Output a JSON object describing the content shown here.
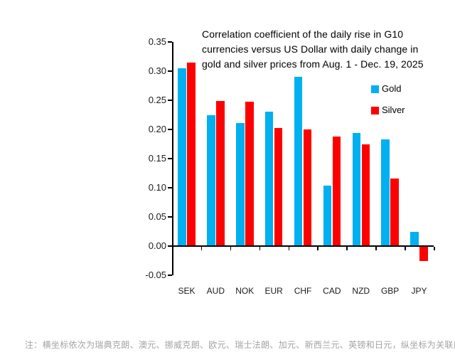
{
  "chart_data": {
    "type": "bar",
    "title": "Correlation coefficient of the daily rise in G10\ncurrencies versus US Dollar with daily change in\ngold and silver prices from Aug. 1 - Dec. 19, 2025",
    "categories": [
      "SEK",
      "AUD",
      "NOK",
      "EUR",
      "CHF",
      "CAD",
      "NZD",
      "GBP",
      "JPY"
    ],
    "series": [
      {
        "name": "Gold",
        "color": "#00B0F0",
        "values": [
          0.305,
          0.224,
          0.211,
          0.231,
          0.29,
          0.104,
          0.194,
          0.183,
          0.025
        ]
      },
      {
        "name": "Silver",
        "color": "#FF0000",
        "values": [
          0.315,
          0.249,
          0.248,
          0.203,
          0.2,
          0.188,
          0.174,
          0.116,
          -0.025
        ]
      }
    ],
    "xlabel": "",
    "ylabel": "",
    "ylim": [
      -0.05,
      0.35
    ],
    "ytick_step": 0.05,
    "ytick_labels": [
      "0.35",
      "0.30",
      "0.25",
      "0.20",
      "0.15",
      "0.10",
      "0.05",
      "0.00",
      "-0.05"
    ],
    "grid": false,
    "legend_position": "top-right",
    "axis_color": "#000000"
  },
  "note": {
    "text": "注：横坐标依次为瑞典克朗、澳元、挪威克朗、欧元、瑞士法朗、加元、新西兰元、英镑和日元，纵坐标为关联度",
    "color": "#A3A3A3"
  }
}
